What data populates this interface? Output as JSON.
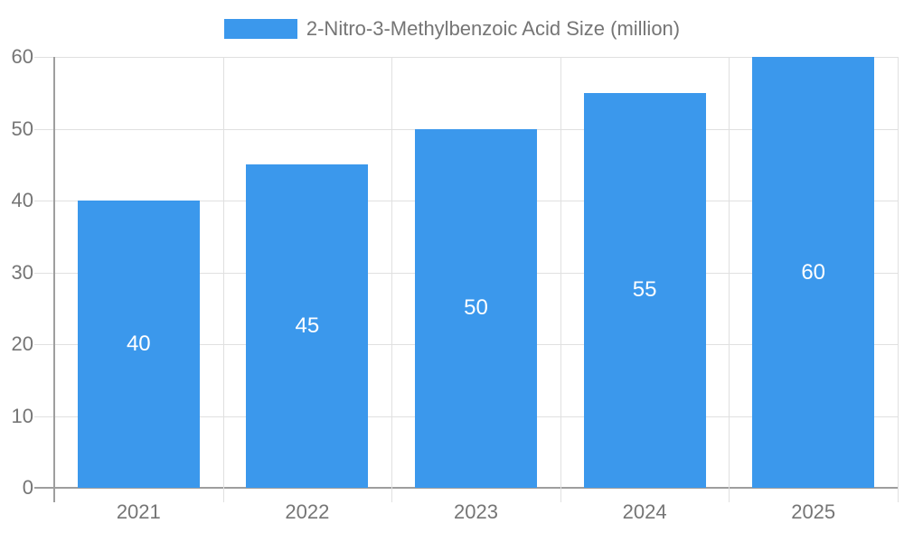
{
  "chart_data": {
    "type": "bar",
    "title": "2-Nitro-3-Methylbenzoic Acid Size (million)",
    "xlabel": "",
    "ylabel": "",
    "categories": [
      "2021",
      "2022",
      "2023",
      "2024",
      "2025"
    ],
    "series": [
      {
        "name": "2-Nitro-3-Methylbenzoic Acid Size (million)",
        "values": [
          40,
          45,
          50,
          55,
          60
        ]
      }
    ],
    "value_labels": [
      "40",
      "45",
      "50",
      "55",
      "60"
    ],
    "ylim": [
      0,
      60
    ],
    "yticks": [
      0,
      10,
      20,
      30,
      40,
      50,
      60
    ],
    "grid": "on",
    "legend_position": "top-center",
    "colors": {
      "bar": "#3b98ec",
      "value_label": "#ffffff",
      "axis_text": "#757575",
      "grid_line": "#e0e0e0",
      "axis_line": "#9e9e9e",
      "background": "#ffffff"
    }
  }
}
